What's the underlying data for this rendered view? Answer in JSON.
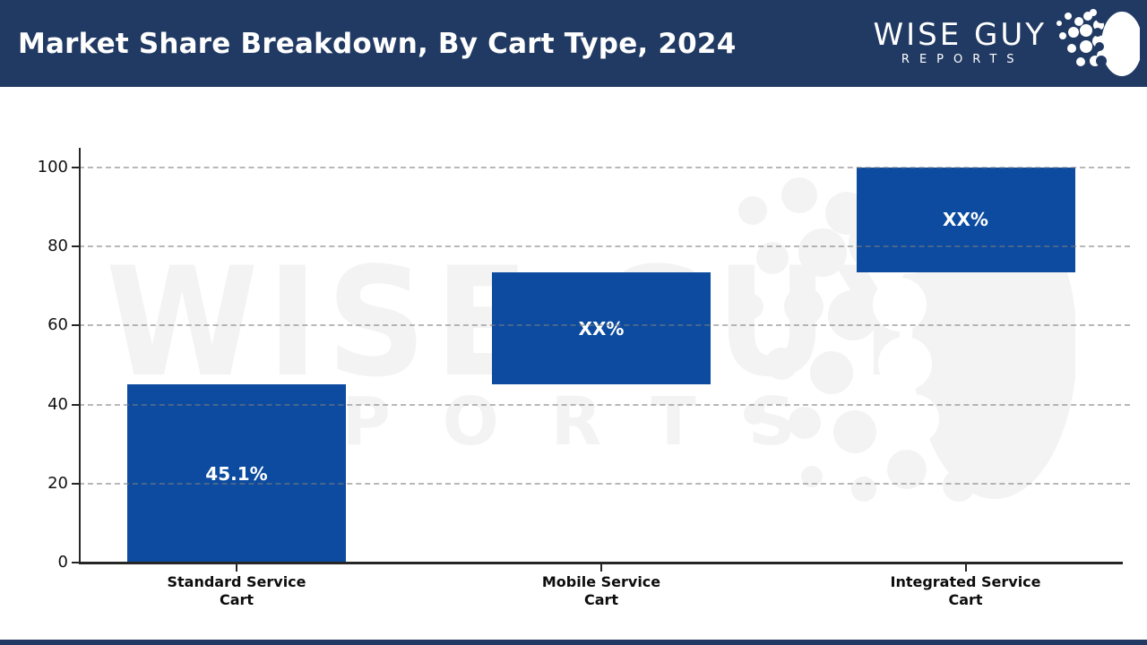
{
  "header": {
    "title": "Market Share Breakdown, By Cart Type, 2024",
    "logo": {
      "line1": "WISE GUY",
      "line2": "REPORTS"
    }
  },
  "watermark": {
    "line1": "WISE GUY",
    "line2": "REPORTS"
  },
  "chart_data": {
    "type": "bar",
    "subtype": "stacked-waterfall",
    "title": "Market Share Breakdown, By Cart Type, 2024",
    "categories": [
      "Standard Service Cart",
      "Mobile Service Cart",
      "Integrated Service Cart"
    ],
    "category_lines": [
      [
        "Standard Service",
        "Cart"
      ],
      [
        "Mobile Service",
        "Cart"
      ],
      [
        "Integrated Service",
        "Cart"
      ]
    ],
    "segments": [
      {
        "category": "Standard Service Cart",
        "start": 0,
        "end": 45.1,
        "label": "45.1%"
      },
      {
        "category": "Mobile Service Cart",
        "start": 45.1,
        "end": 73.5,
        "label": "XX%"
      },
      {
        "category": "Integrated Service Cart",
        "start": 73.5,
        "end": 100,
        "label": "XX%"
      }
    ],
    "yticks": [
      0,
      20,
      40,
      60,
      80,
      100
    ],
    "ylim": [
      0,
      105
    ],
    "xlabel": "",
    "ylabel": "",
    "grid": "horizontal-dashed-over-bars",
    "legend": "none"
  },
  "colors": {
    "header_bg": "#213a63",
    "footer_bg": "#213a63",
    "bar": "#0c4b9f",
    "bar_label": "#ffffff",
    "watermark": "#f3f3f3",
    "axis": "#262626",
    "grid": "#7d7d7d"
  }
}
